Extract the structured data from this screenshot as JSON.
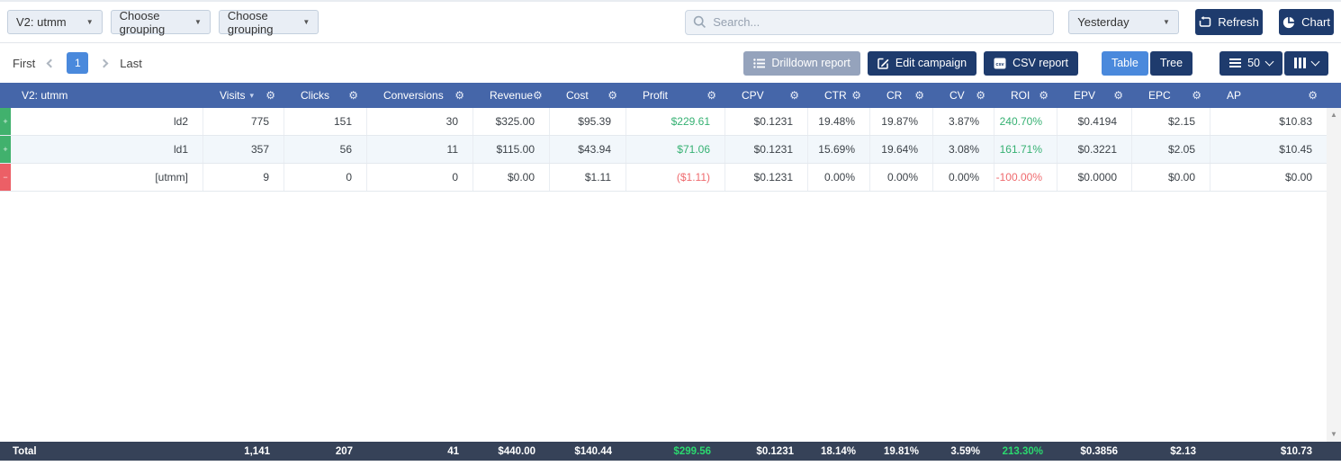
{
  "toolbar": {
    "campaign_select": "V2: utmm",
    "grouping_selects": [
      "Choose grouping",
      "Choose grouping"
    ],
    "search_placeholder": "Search...",
    "date_select": "Yesterday",
    "refresh_button": "Refresh",
    "chart_button": "Chart"
  },
  "pagination": {
    "first_label": "First",
    "current_page": "1",
    "last_label": "Last"
  },
  "actions": {
    "drilldown_button": "Drilldown report",
    "edit_campaign_button": "Edit campaign",
    "csv_button": "CSV report",
    "table_toggle": "Table",
    "tree_toggle": "Tree",
    "page_size": "50",
    "csv_icon_text": "csv"
  },
  "table": {
    "columns": [
      {
        "label": "V2: utmm",
        "gear": false,
        "sort": false
      },
      {
        "label": "Visits",
        "gear": true,
        "sort": true
      },
      {
        "label": "Clicks",
        "gear": true,
        "sort": false
      },
      {
        "label": "Conversions",
        "gear": true,
        "sort": false
      },
      {
        "label": "Revenue",
        "gear": true,
        "sort": false
      },
      {
        "label": "Cost",
        "gear": true,
        "sort": false
      },
      {
        "label": "Profit",
        "gear": true,
        "sort": false
      },
      {
        "label": "CPV",
        "gear": true,
        "sort": false
      },
      {
        "label": "CTR",
        "gear": true,
        "sort": false
      },
      {
        "label": "CR",
        "gear": true,
        "sort": false
      },
      {
        "label": "CV",
        "gear": true,
        "sort": false
      },
      {
        "label": "ROI",
        "gear": true,
        "sort": false
      },
      {
        "label": "EPV",
        "gear": true,
        "sort": false
      },
      {
        "label": "EPC",
        "gear": true,
        "sort": false
      },
      {
        "label": "AP",
        "gear": true,
        "sort": false
      }
    ],
    "rows": [
      {
        "status": "positive",
        "status_sign": "+",
        "cells": [
          "ld2",
          "775",
          "151",
          "30",
          "$325.00",
          "$95.39",
          "$229.61",
          "$0.1231",
          "19.48%",
          "19.87%",
          "3.87%",
          "240.70%",
          "$0.4194",
          "$2.15",
          "$10.83"
        ],
        "highlight": {
          "6": "green",
          "11": "green"
        }
      },
      {
        "status": "positive",
        "status_sign": "+",
        "cells": [
          "ld1",
          "357",
          "56",
          "11",
          "$115.00",
          "$43.94",
          "$71.06",
          "$0.1231",
          "15.69%",
          "19.64%",
          "3.08%",
          "161.71%",
          "$0.3221",
          "$2.05",
          "$10.45"
        ],
        "highlight": {
          "6": "green",
          "11": "green"
        }
      },
      {
        "status": "negative",
        "status_sign": "−",
        "cells": [
          "[utmm]",
          "9",
          "0",
          "0",
          "$0.00",
          "$1.11",
          "($1.11)",
          "$0.1231",
          "0.00%",
          "0.00%",
          "0.00%",
          "-100.00%",
          "$0.0000",
          "$0.00",
          "$0.00"
        ],
        "highlight": {
          "6": "red",
          "11": "red"
        }
      }
    ],
    "total": {
      "cells": [
        "Total",
        "1,141",
        "207",
        "41",
        "$440.00",
        "$140.44",
        "$299.56",
        "$0.1231",
        "18.14%",
        "19.81%",
        "3.59%",
        "213.30%",
        "$0.3856",
        "$2.13",
        "$10.73"
      ],
      "highlight": {
        "6": "green",
        "11": "green"
      }
    }
  },
  "colors": {
    "header_bg": "#4566a9",
    "total_bg": "#364258",
    "dark_button": "#1e3b6d",
    "accent_blue": "#4a89dc",
    "muted_button": "#95a3bc",
    "positive_green": "#36b173",
    "negative_red": "#ef6a6e",
    "total_green": "#2bd96f",
    "strip_green": "#41b16d",
    "strip_red": "#ec5f66",
    "row_stripe": "#f2f7fb"
  }
}
